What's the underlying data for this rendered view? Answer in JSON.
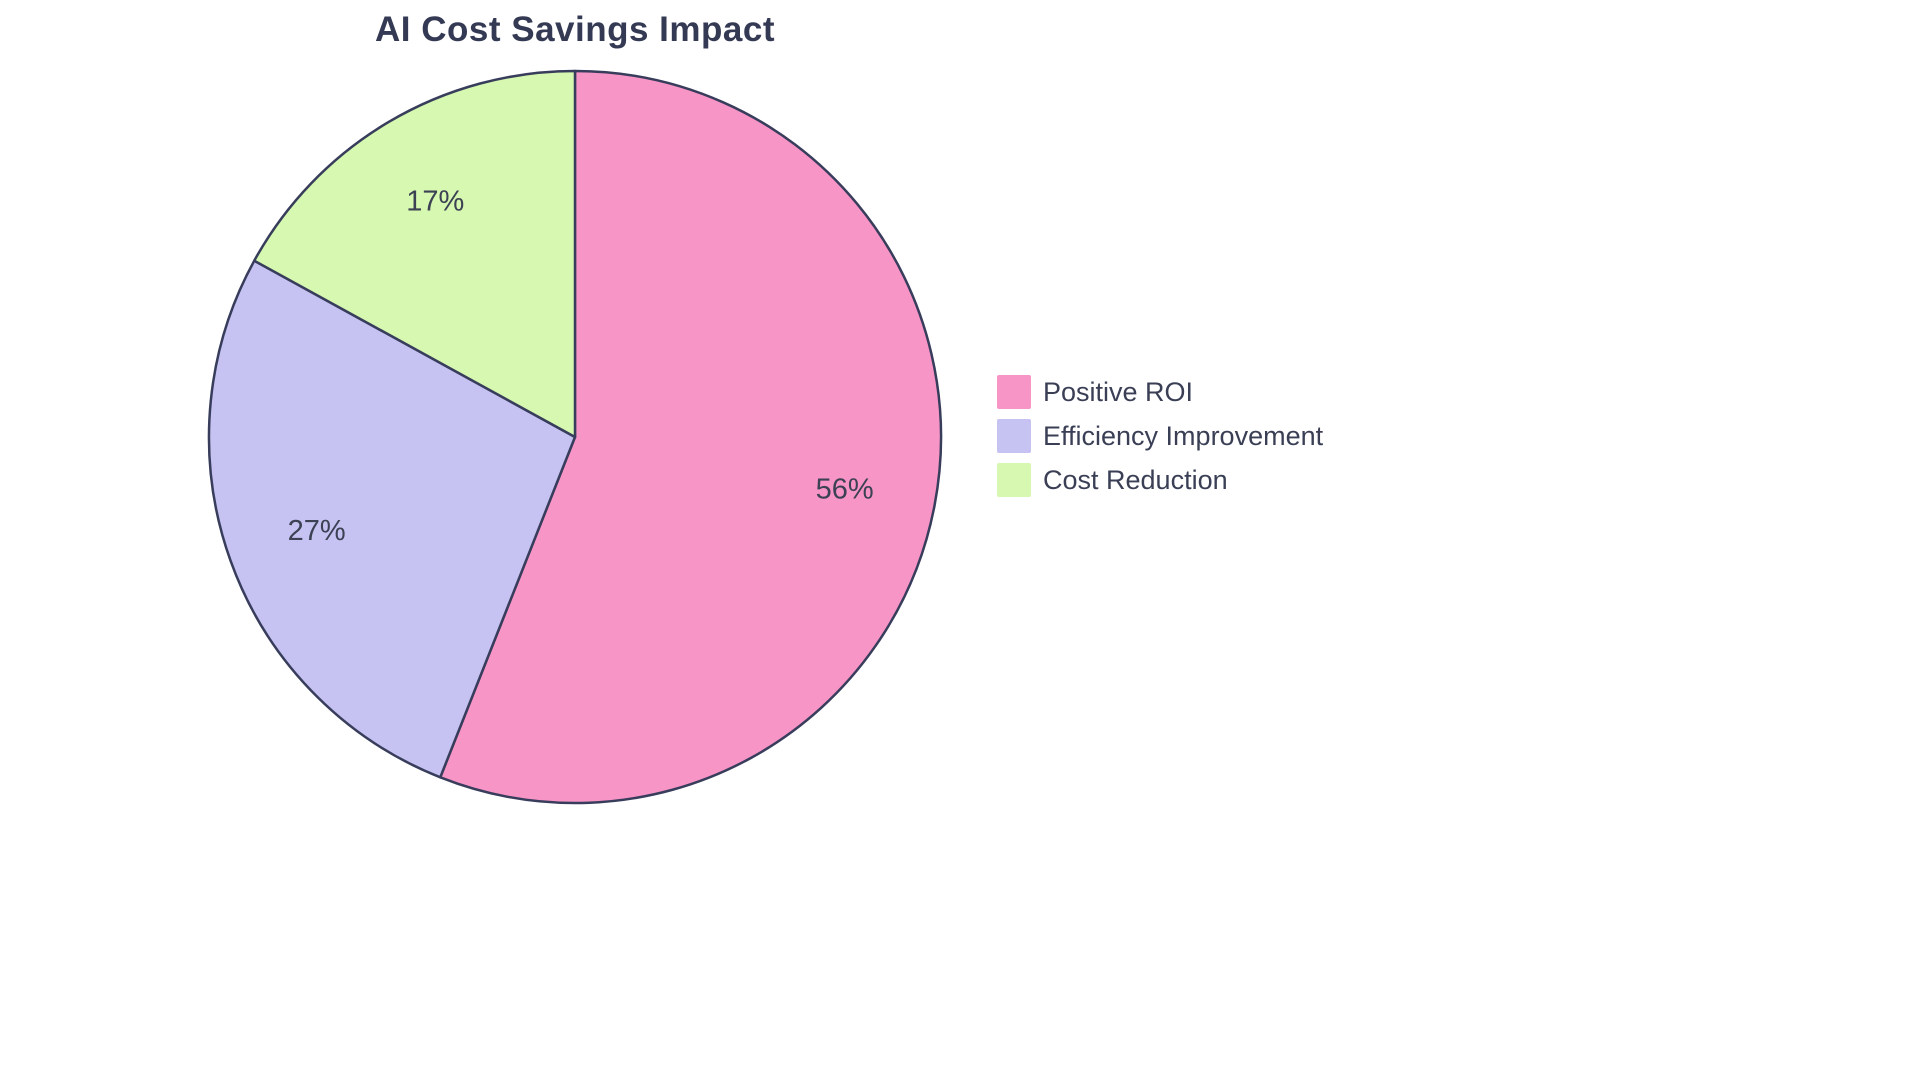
{
  "chart_data": {
    "type": "pie",
    "title": "AI Cost Savings Impact",
    "legend_position": "right",
    "stroke_color": "#383D5C",
    "label_color": "#3C4154",
    "background": "#FFFFFF",
    "slices": [
      {
        "label": "Positive ROI",
        "value": 56,
        "display": "56%",
        "color": "#F895C7"
      },
      {
        "label": "Efficiency Improvement",
        "value": 27,
        "display": "27%",
        "color": "#C6C2F2"
      },
      {
        "label": "Cost Reduction",
        "value": 17,
        "display": "17%",
        "color": "#D6F8B0"
      }
    ]
  }
}
